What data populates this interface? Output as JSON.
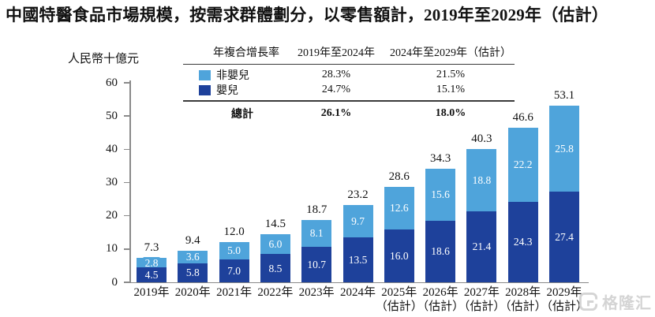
{
  "title": "中國特醫食品市場規模，按需求群體劃分，以零售額計，2019年至2029年（估計）",
  "y_axis_label": "人民幣十億元",
  "cagr_table": {
    "header": {
      "col1": "年複合增長率",
      "col2": "2019年至2024年",
      "col3": "2024年至2029年（估計）"
    },
    "rows": [
      {
        "label": "非嬰兒",
        "color": "#4FA4DB",
        "v1": "28.3%",
        "v2": "21.5%"
      },
      {
        "label": "嬰兒",
        "color": "#1E419B",
        "v1": "24.7%",
        "v2": "15.1%"
      }
    ],
    "total": {
      "label": "總計",
      "v1": "26.1%",
      "v2": "18.0%"
    }
  },
  "watermark": {
    "text": "格隆汇"
  },
  "colors": {
    "non_infant": "#4FA4DB",
    "infant": "#1E419B",
    "axis": "#8a8a8a",
    "watermark": "#d4d4d4"
  },
  "chart_data": {
    "type": "bar",
    "stacked": true,
    "title": "中國特醫食品市場規模，按需求群體劃分，以零售額計，2019年至2029年（估計）",
    "xlabel": "",
    "ylabel": "人民幣十億元",
    "ylim": [
      0,
      60
    ],
    "yticks": [
      0,
      10,
      20,
      30,
      40,
      50,
      60
    ],
    "grid": false,
    "legend_position": "top-table",
    "categories": [
      "2019年",
      "2020年",
      "2021年",
      "2022年",
      "2023年",
      "2024年",
      "2025年（估計）",
      "2026年（估計）",
      "2027年（估計）",
      "2028年（估計）",
      "2029年（估計）"
    ],
    "category_lines": [
      [
        "2019年"
      ],
      [
        "2020年"
      ],
      [
        "2021年"
      ],
      [
        "2022年"
      ],
      [
        "2023年"
      ],
      [
        "2024年"
      ],
      [
        "2025年",
        "（估計）"
      ],
      [
        "2026年",
        "（估計）"
      ],
      [
        "2027年",
        "（估計）"
      ],
      [
        "2028年",
        "（估計）"
      ],
      [
        "2029年",
        "（估計）"
      ]
    ],
    "series": [
      {
        "name": "嬰兒",
        "color": "#1E419B",
        "values": [
          4.5,
          5.8,
          7.0,
          8.5,
          10.7,
          13.5,
          16.0,
          18.6,
          21.4,
          24.3,
          27.4
        ],
        "labels": [
          "4.5",
          "5.8",
          "7.0",
          "8.5",
          "10.7",
          "13.5",
          "16.0",
          "18.6",
          "21.4",
          "24.3",
          "27.4"
        ]
      },
      {
        "name": "非嬰兒",
        "color": "#4FA4DB",
        "values": [
          2.8,
          3.6,
          5.0,
          6.0,
          8.1,
          9.7,
          12.6,
          15.6,
          18.8,
          22.2,
          25.8
        ],
        "labels": [
          "2.8",
          "3.6",
          "5.0",
          "6.0",
          "8.1",
          "9.7",
          "12.6",
          "15.6",
          "18.8",
          "22.2",
          "25.8"
        ]
      }
    ],
    "totals": [
      7.3,
      9.4,
      12.0,
      14.5,
      18.7,
      23.2,
      28.6,
      34.3,
      40.3,
      46.6,
      53.1
    ],
    "totals_labels": [
      "7.3",
      "9.4",
      "12.0",
      "14.5",
      "18.7",
      "23.2",
      "28.6",
      "34.3",
      "40.3",
      "46.6",
      "53.1"
    ]
  }
}
